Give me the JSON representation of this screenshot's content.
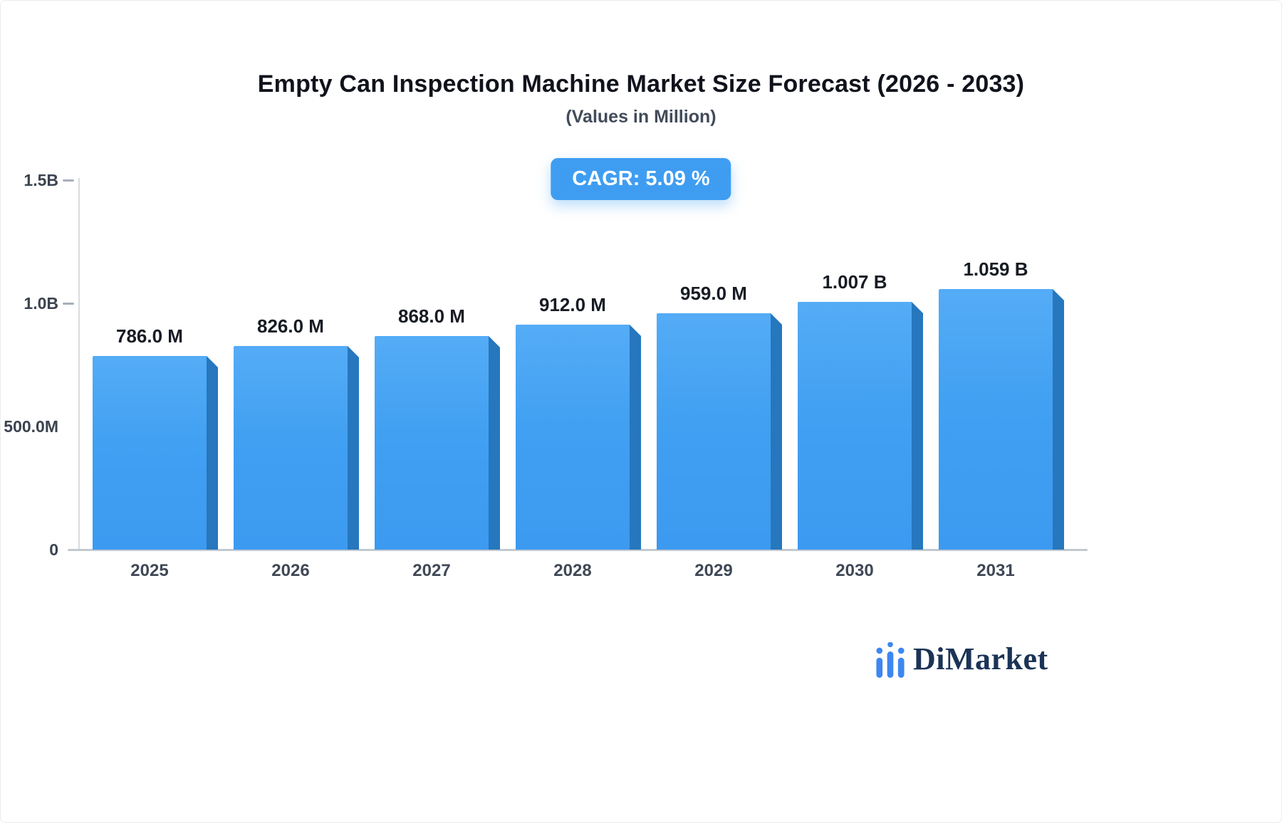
{
  "page": {
    "title": "Empty Can Inspection Machine Market Size Forecast (2026 - 2033)",
    "subtitle": "(Values in Million)",
    "cagr_label": "CAGR: 5.09 %"
  },
  "brand": {
    "name": "DiMarket",
    "icon": "bar-chart-icon"
  },
  "chart_data": {
    "type": "bar",
    "title": "Empty Can Inspection Machine Market Size Forecast (2026 - 2033)",
    "subtitle": "(Values in Million)",
    "categories": [
      "2025",
      "2026",
      "2027",
      "2028",
      "2029",
      "2030",
      "2031"
    ],
    "values_millions": [
      786,
      826,
      868,
      912,
      959,
      1007,
      1059
    ],
    "bar_labels": [
      "786.0 M",
      "826.0 M",
      "868.0 M",
      "912.0 M",
      "959.0 M",
      "1.007 B",
      "1.059 B"
    ],
    "ylim_millions": [
      0,
      1500
    ],
    "y_ticks": [
      {
        "label": "1.5B",
        "value_millions": 1500
      },
      {
        "label": "1.0B",
        "value_millions": 1000
      },
      {
        "label": "500.0M",
        "value_millions": 500
      },
      {
        "label": "0",
        "value_millions": 0
      }
    ],
    "grid": "off",
    "legend": "none",
    "annotations": [
      "CAGR: 5.09 %"
    ],
    "colors": {
      "bar_face": "#41a0f2",
      "bar_side": "#2677be",
      "badge": "#3f9df1",
      "axis": "#c3c9d1",
      "title_text": "#10131c",
      "brand_text": "#1b3356",
      "brand_icon": "#3d87f0"
    }
  }
}
